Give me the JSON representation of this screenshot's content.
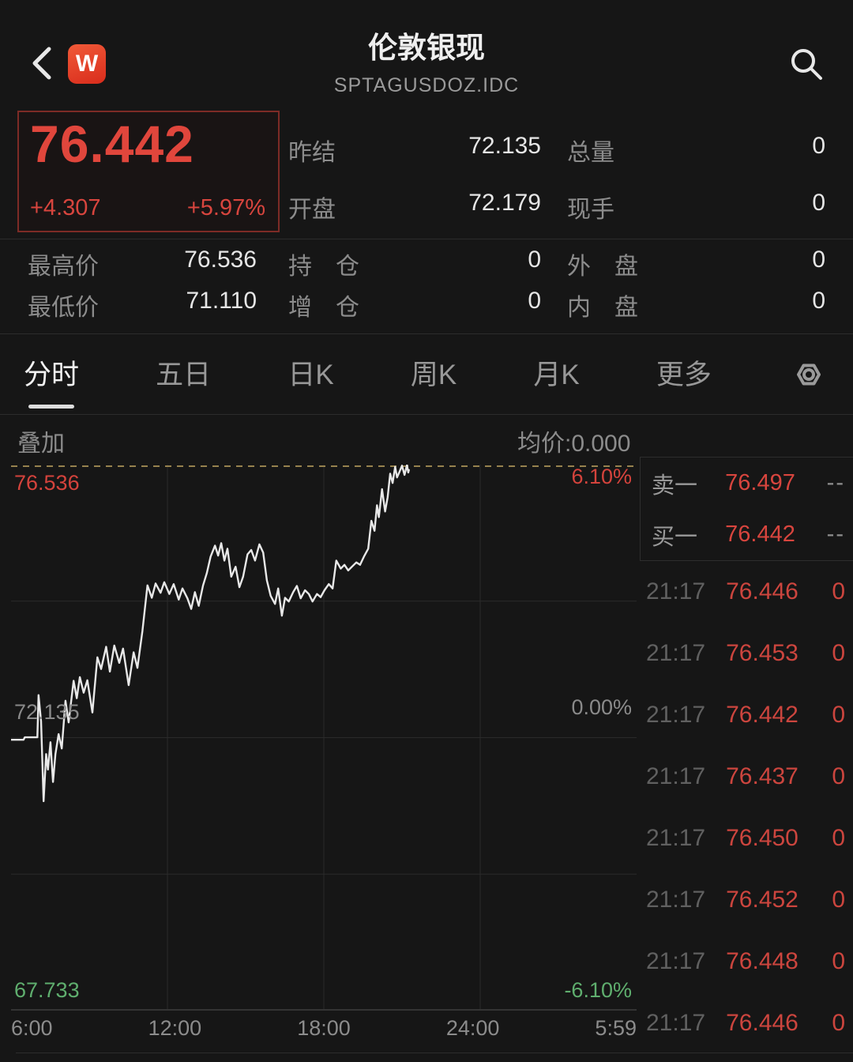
{
  "header": {
    "title": "伦敦银现",
    "subtitle": "SPTAGUSDOZ.IDC",
    "app_badge": "W"
  },
  "quote": {
    "last": "76.442",
    "change": "+4.307",
    "change_pct": "+5.97%"
  },
  "quote_grid": {
    "r1c1_label": "昨结",
    "r1c1_value": "72.135",
    "r1c2_label": "总量",
    "r1c2_value": "0",
    "r2c1_label": "开盘",
    "r2c1_value": "72.179",
    "r2c2_label": "现手",
    "r2c2_value": "0"
  },
  "stats_grid": {
    "r1c1_label": "最高价",
    "r1c1_value": "76.536",
    "r1c2_label": "持　仓",
    "r1c2_value": "0",
    "r1c3_label": "外　盘",
    "r1c3_value": "0",
    "r2c1_label": "最低价",
    "r2c1_value": "71.110",
    "r2c2_label": "增　仓",
    "r2c2_value": "0",
    "r2c3_label": "内　盘",
    "r2c3_value": "0"
  },
  "tabs": [
    {
      "label": "分时",
      "active": true
    },
    {
      "label": "五日",
      "active": false
    },
    {
      "label": "日K",
      "active": false
    },
    {
      "label": "周K",
      "active": false
    },
    {
      "label": "月K",
      "active": false
    },
    {
      "label": "更多",
      "active": false
    }
  ],
  "overlay": {
    "label": "叠加",
    "avg_label": "均价:0.000"
  },
  "chart_labels": {
    "high": "76.536",
    "high_pct": "6.10%",
    "mid": "72.135",
    "mid_pct": "0.00%",
    "low": "67.733",
    "low_pct": "-6.10%"
  },
  "chart_data": {
    "type": "line",
    "title": "分时 (intraday) 伦敦银现 SPTAGUSDOZ.IDC",
    "x_axis": {
      "ticks": [
        "6:00",
        "12:00",
        "18:00",
        "24:00",
        "5:59"
      ],
      "range_hint": "session 6:00 → 5:59"
    },
    "y_axis": {
      "min": 67.733,
      "max": 76.536,
      "mid_reference": 72.135,
      "pct_top": "6.10%",
      "pct_mid": "0.00%",
      "pct_bottom": "-6.10%"
    },
    "grid": {
      "v_fractions": [
        0.25,
        0.5,
        0.75
      ],
      "h_fractions": [
        0.25,
        0.5,
        0.75
      ]
    },
    "high_dashed_level": 76.536,
    "last": 76.442,
    "high": 76.536,
    "low": 71.11,
    "prev_settle": 72.135,
    "series": [
      {
        "name": "price",
        "points": [
          [
            0.0,
            72.1
          ],
          [
            0.02,
            72.1
          ],
          [
            0.022,
            72.14
          ],
          [
            0.042,
            72.14
          ],
          [
            0.044,
            72.82
          ],
          [
            0.048,
            72.4
          ],
          [
            0.052,
            71.11
          ],
          [
            0.056,
            71.87
          ],
          [
            0.059,
            71.62
          ],
          [
            0.063,
            72.06
          ],
          [
            0.067,
            71.42
          ],
          [
            0.071,
            71.87
          ],
          [
            0.076,
            72.19
          ],
          [
            0.081,
            71.96
          ],
          [
            0.087,
            72.73
          ],
          [
            0.092,
            72.38
          ],
          [
            0.1,
            73.05
          ],
          [
            0.105,
            72.77
          ],
          [
            0.11,
            73.11
          ],
          [
            0.116,
            72.86
          ],
          [
            0.122,
            73.06
          ],
          [
            0.13,
            72.54
          ],
          [
            0.138,
            73.43
          ],
          [
            0.144,
            73.24
          ],
          [
            0.152,
            73.6
          ],
          [
            0.158,
            73.2
          ],
          [
            0.165,
            73.62
          ],
          [
            0.173,
            73.34
          ],
          [
            0.179,
            73.57
          ],
          [
            0.188,
            72.98
          ],
          [
            0.196,
            73.51
          ],
          [
            0.202,
            73.26
          ],
          [
            0.21,
            73.85
          ],
          [
            0.218,
            74.59
          ],
          [
            0.225,
            74.39
          ],
          [
            0.231,
            74.62
          ],
          [
            0.239,
            74.47
          ],
          [
            0.245,
            74.64
          ],
          [
            0.253,
            74.45
          ],
          [
            0.26,
            74.61
          ],
          [
            0.268,
            74.36
          ],
          [
            0.274,
            74.54
          ],
          [
            0.282,
            74.38
          ],
          [
            0.288,
            74.21
          ],
          [
            0.294,
            74.48
          ],
          [
            0.3,
            74.26
          ],
          [
            0.307,
            74.59
          ],
          [
            0.313,
            74.79
          ],
          [
            0.319,
            75.05
          ],
          [
            0.326,
            75.23
          ],
          [
            0.331,
            75.07
          ],
          [
            0.336,
            75.27
          ],
          [
            0.341,
            74.99
          ],
          [
            0.346,
            75.18
          ],
          [
            0.352,
            74.73
          ],
          [
            0.359,
            74.89
          ],
          [
            0.365,
            74.56
          ],
          [
            0.371,
            74.73
          ],
          [
            0.378,
            75.09
          ],
          [
            0.384,
            75.16
          ],
          [
            0.39,
            74.99
          ],
          [
            0.397,
            75.25
          ],
          [
            0.403,
            75.12
          ],
          [
            0.409,
            74.67
          ],
          [
            0.415,
            74.42
          ],
          [
            0.422,
            74.29
          ],
          [
            0.427,
            74.54
          ],
          [
            0.433,
            74.1
          ],
          [
            0.438,
            74.39
          ],
          [
            0.444,
            74.33
          ],
          [
            0.451,
            74.48
          ],
          [
            0.457,
            74.58
          ],
          [
            0.463,
            74.38
          ],
          [
            0.47,
            74.51
          ],
          [
            0.476,
            74.45
          ],
          [
            0.482,
            74.33
          ],
          [
            0.489,
            74.45
          ],
          [
            0.495,
            74.4
          ],
          [
            0.501,
            74.51
          ],
          [
            0.508,
            74.61
          ],
          [
            0.514,
            74.54
          ],
          [
            0.52,
            74.99
          ],
          [
            0.527,
            74.86
          ],
          [
            0.533,
            74.92
          ],
          [
            0.539,
            74.83
          ],
          [
            0.545,
            74.89
          ],
          [
            0.552,
            74.96
          ],
          [
            0.558,
            74.92
          ],
          [
            0.564,
            75.05
          ],
          [
            0.571,
            75.18
          ],
          [
            0.576,
            75.63
          ],
          [
            0.581,
            75.47
          ],
          [
            0.585,
            75.88
          ],
          [
            0.588,
            75.69
          ],
          [
            0.593,
            76.14
          ],
          [
            0.598,
            75.78
          ],
          [
            0.602,
            76.01
          ],
          [
            0.606,
            76.39
          ],
          [
            0.61,
            76.24
          ],
          [
            0.614,
            76.5
          ],
          [
            0.617,
            76.33
          ],
          [
            0.621,
            76.42
          ],
          [
            0.625,
            76.52
          ],
          [
            0.629,
            76.37
          ],
          [
            0.633,
            76.53
          ],
          [
            0.635,
            76.41
          ],
          [
            0.636,
            76.45
          ]
        ]
      }
    ]
  },
  "order_book": {
    "ask_label": "卖一",
    "ask_price": "76.497",
    "ask_vol": "--",
    "bid_label": "买一",
    "bid_price": "76.442",
    "bid_vol": "--"
  },
  "trades": [
    {
      "time": "21:17",
      "price": "76.446",
      "vol": "0"
    },
    {
      "time": "21:17",
      "price": "76.453",
      "vol": "0"
    },
    {
      "time": "21:17",
      "price": "76.442",
      "vol": "0"
    },
    {
      "time": "21:17",
      "price": "76.437",
      "vol": "0"
    },
    {
      "time": "21:17",
      "price": "76.450",
      "vol": "0"
    },
    {
      "time": "21:17",
      "price": "76.452",
      "vol": "0"
    },
    {
      "time": "21:17",
      "price": "76.448",
      "vol": "0"
    },
    {
      "time": "21:17",
      "price": "76.446",
      "vol": "0"
    }
  ],
  "colors": {
    "up_red": "#d8453e",
    "big_price_red": "#e0463c",
    "down_green": "#5fae6e",
    "dashed_high_line": "#96824e",
    "price_line": "#e8e8e8",
    "grid": "#2a2a2a",
    "label_gray": "#8c8c8c",
    "background": "#161616",
    "price_box_border": "#7d2b26",
    "app_badge_bg": "#e8452c"
  }
}
